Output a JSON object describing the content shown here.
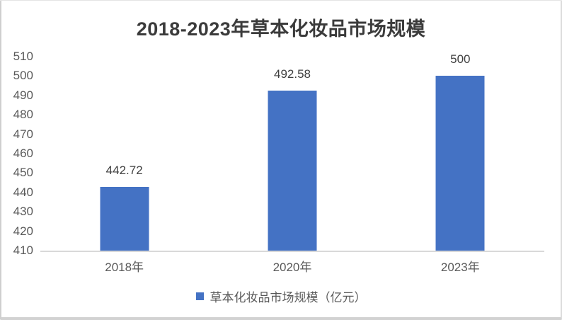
{
  "window": {
    "background": "#ffffff",
    "border_color": "#d2d2d2"
  },
  "chart_data": {
    "type": "bar",
    "title": "2018-2023年草本化妆品市场规模",
    "categories": [
      "2018年",
      "2020年",
      "2023年"
    ],
    "values": [
      442.72,
      492.58,
      500
    ],
    "value_labels": [
      "442.72",
      "492.58",
      "500"
    ],
    "xlabel": "",
    "ylabel": "",
    "ylim": [
      410,
      510
    ],
    "ytick_step": 10,
    "ytick_labels": [
      "510",
      "500",
      "490",
      "480",
      "470",
      "460",
      "450",
      "440",
      "430",
      "420",
      "410"
    ],
    "grid": false,
    "bar_color": "#4472C4",
    "axis_line_color": "#D9D9D9",
    "legend": {
      "position": "bottom",
      "entries": [
        {
          "label": "草本化妆品市场规模（亿元）",
          "marker_color": "#4472C4"
        }
      ]
    }
  }
}
